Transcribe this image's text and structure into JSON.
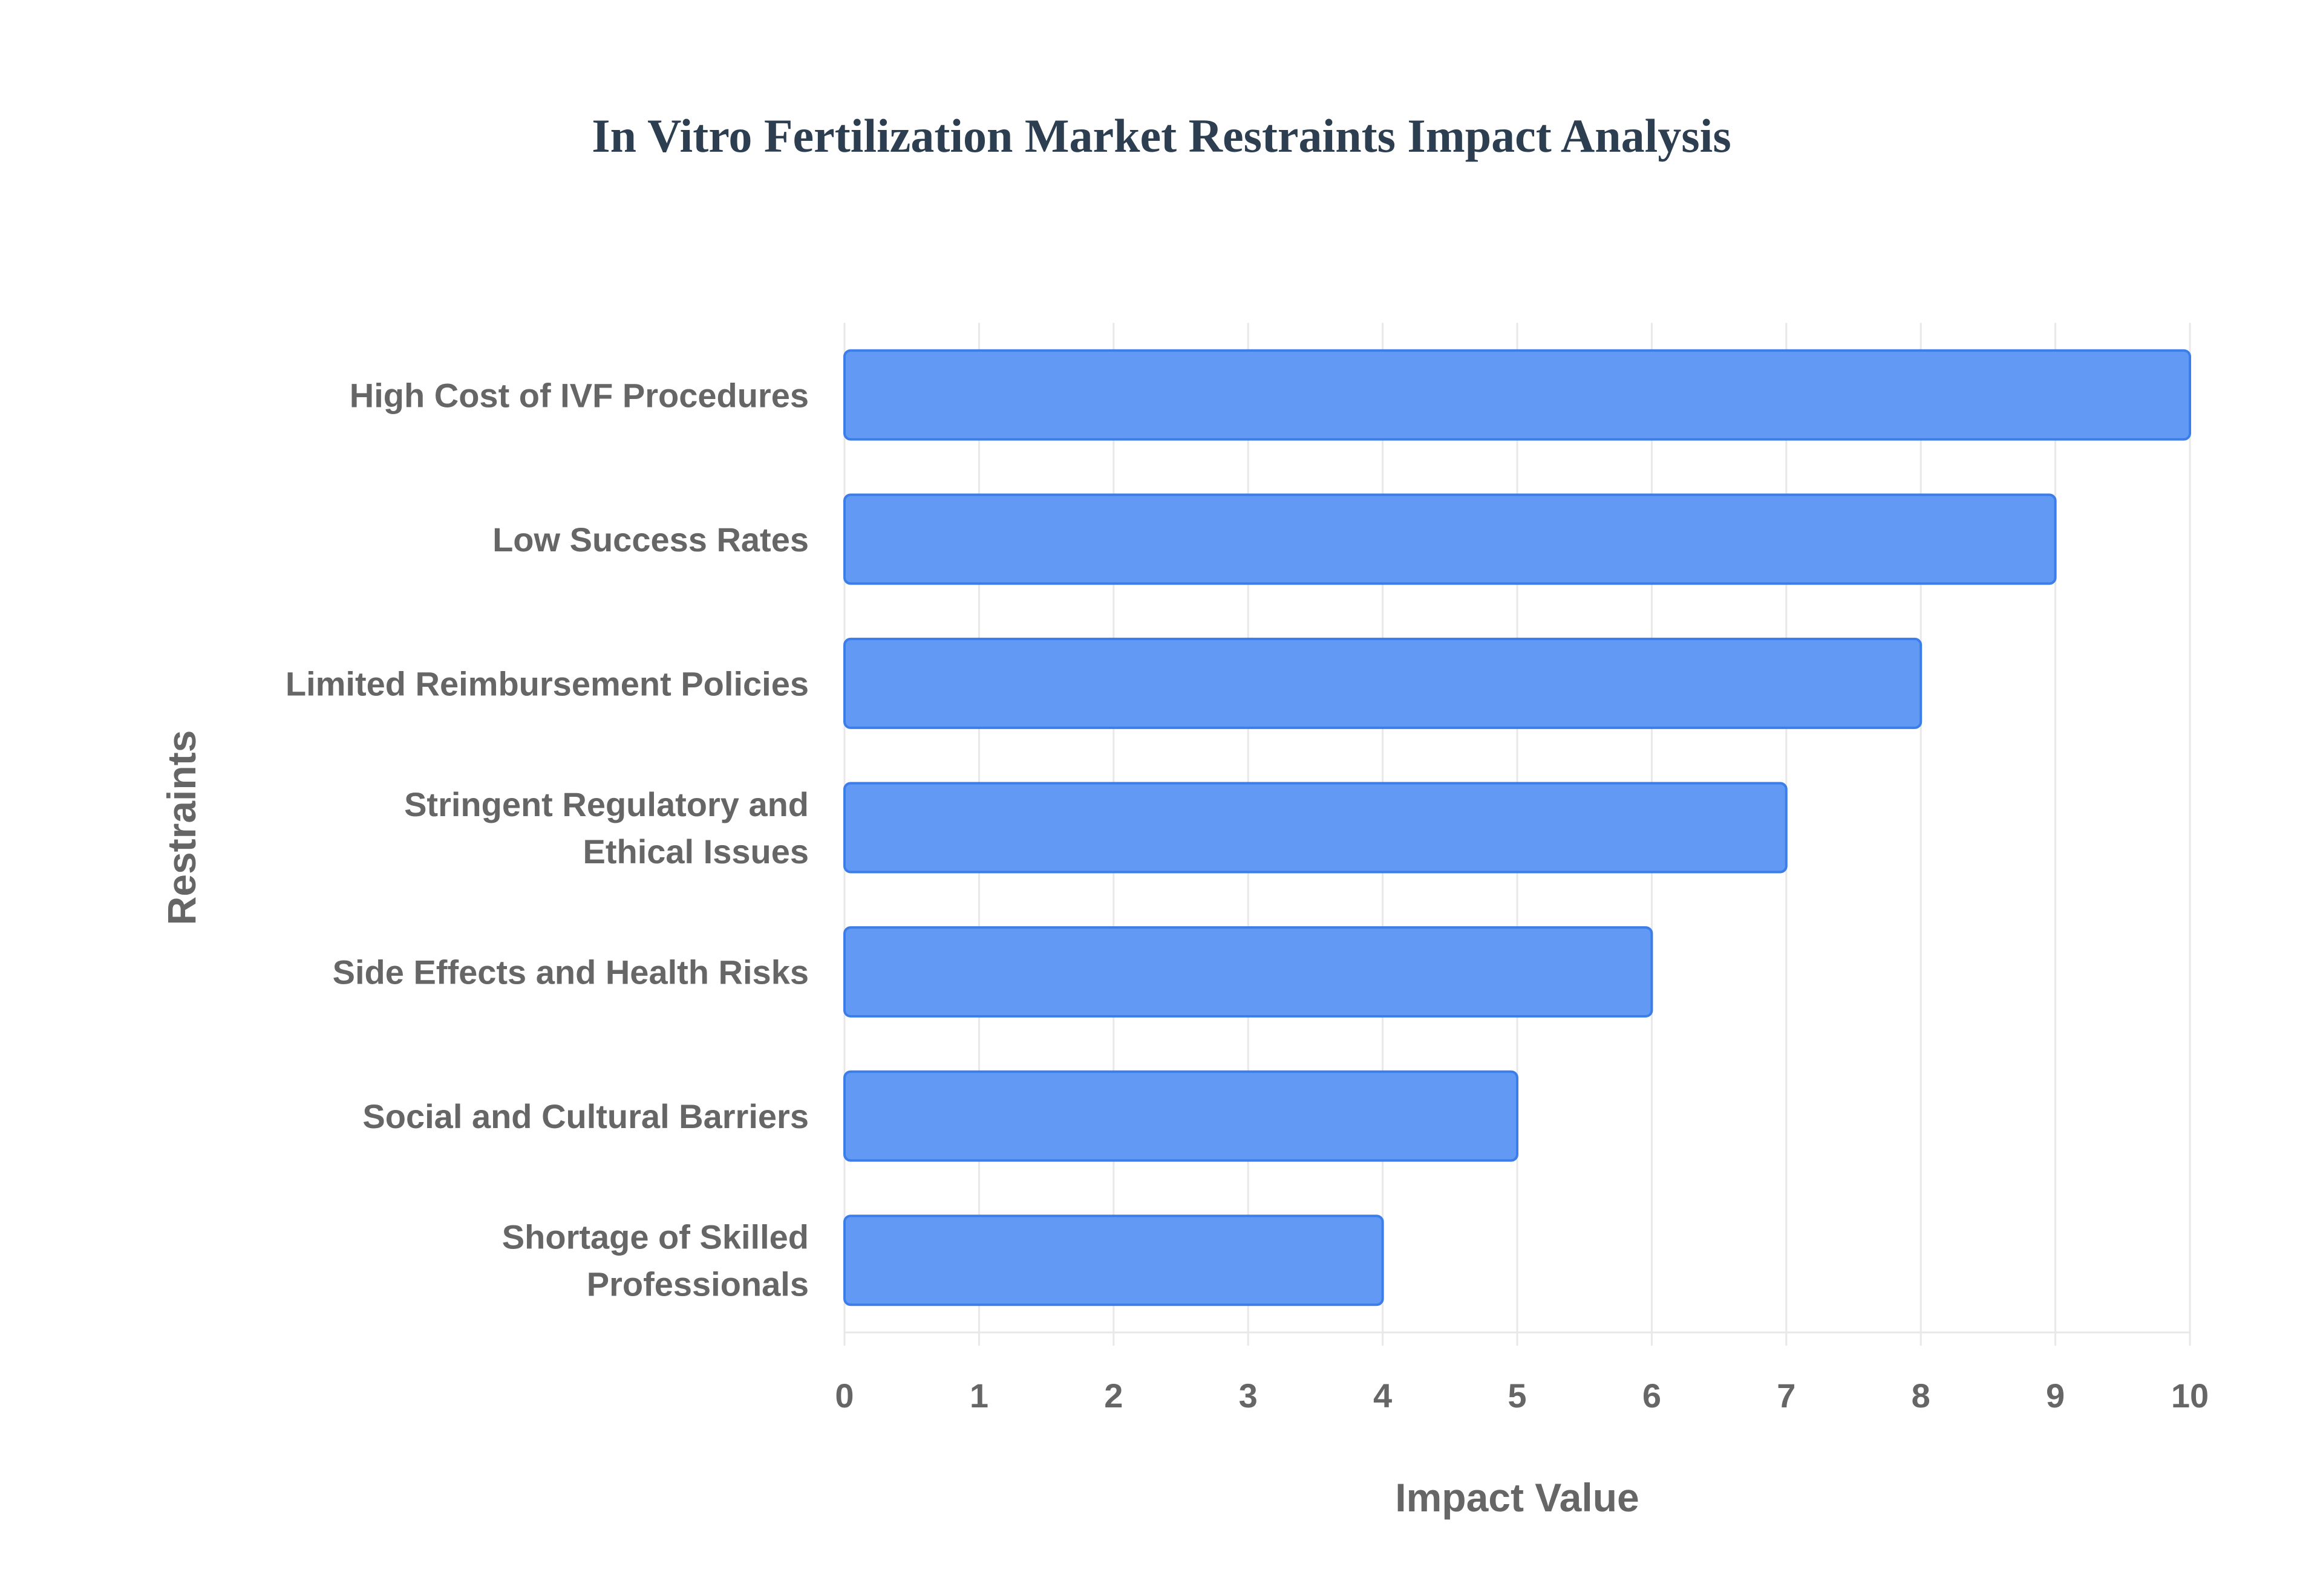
{
  "chart_data": {
    "type": "bar",
    "orientation": "horizontal",
    "title": "In Vitro Fertilization Market Restraints Impact Analysis",
    "xlabel": "Impact Value",
    "ylabel": "Restraints",
    "categories": [
      [
        "High Cost of IVF Procedures"
      ],
      [
        "Low Success Rates"
      ],
      [
        "Limited Reimbursement Policies"
      ],
      [
        "Stringent Regulatory and",
        "Ethical Issues"
      ],
      [
        "Side Effects and Health Risks"
      ],
      [
        "Social and Cultural Barriers"
      ],
      [
        "Shortage of Skilled",
        "Professionals"
      ]
    ],
    "values": [
      10,
      9,
      8,
      7,
      6,
      5,
      4
    ],
    "xlim": [
      0,
      10
    ],
    "xticks": [
      "0",
      "1",
      "2",
      "3",
      "4",
      "5",
      "6",
      "7",
      "8",
      "9",
      "10"
    ],
    "grid": true,
    "colors": {
      "bar_fill": "#6199f5",
      "bar_border": "#3b7de9",
      "grid": "#e8e8e8"
    }
  }
}
